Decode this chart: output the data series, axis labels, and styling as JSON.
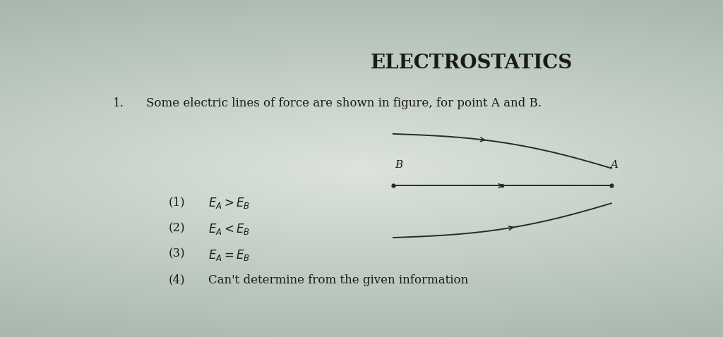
{
  "title": "ELECTROSTATICS",
  "title_fontsize": 20,
  "question_number": "1.",
  "question_text": "Some electric lines of force are shown in figure, for point A and B.",
  "options": [
    [
      "(1)",
      "$E_A > E_B$"
    ],
    [
      "(2)",
      "$E_A < E_B$"
    ],
    [
      "(3)",
      "$E_A = E_B$"
    ],
    [
      "(4)",
      "Can't determine from the given information"
    ]
  ],
  "bg_color_center": "#dde3de",
  "bg_color_edge": "#9aada0",
  "text_color": "#1a1a1a",
  "fig_width": 10.24,
  "fig_height": 4.78,
  "line_color": "#2a2a2a",
  "point_A_label": "A",
  "point_B_label": "B",
  "dpi": 100
}
